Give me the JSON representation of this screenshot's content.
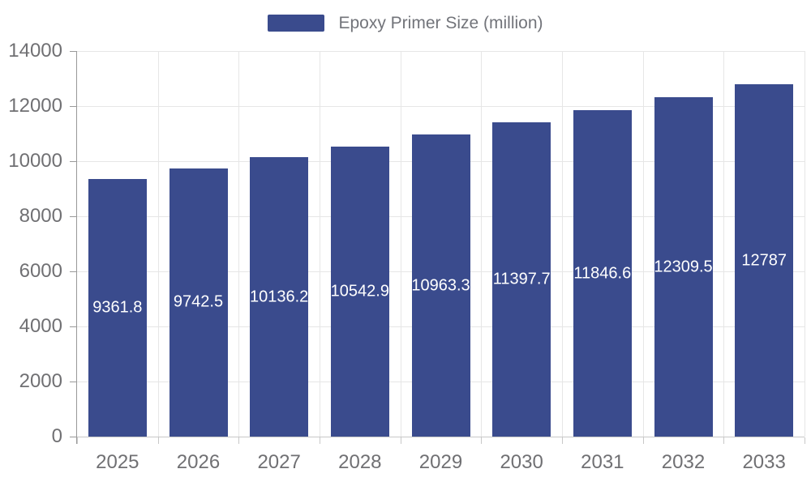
{
  "chart_data": {
    "type": "bar",
    "legend_label": "Epoxy Primer Size (million)",
    "categories": [
      "2025",
      "2026",
      "2027",
      "2028",
      "2029",
      "2030",
      "2031",
      "2032",
      "2033"
    ],
    "series": [
      {
        "name": "Epoxy Primer Size (million)",
        "values": [
          9361.8,
          9742.5,
          10136.2,
          10542.9,
          10963.3,
          11397.7,
          11846.6,
          12309.5,
          12787
        ]
      }
    ],
    "value_labels": [
      "9361.8",
      "9742.5",
      "10136.2",
      "10542.9",
      "10963.3",
      "11397.7",
      "11846.6",
      "12309.5",
      "12787"
    ],
    "ylim": [
      0,
      14000
    ],
    "y_ticks": [
      0,
      2000,
      4000,
      6000,
      8000,
      10000,
      12000,
      14000
    ],
    "grid": true,
    "legend_position": "top-center",
    "bar_label_position": "inside-center",
    "colors": {
      "bar": "#3A4B8D",
      "bar_label": "#FFFFFF",
      "axis_label": "#707073",
      "legend_text": "#72747A",
      "grid_line": "#E6E6E6",
      "y_axis_line": "#999999",
      "x_axis_line": "#C8C8C8",
      "background": "#FFFFFF"
    }
  }
}
